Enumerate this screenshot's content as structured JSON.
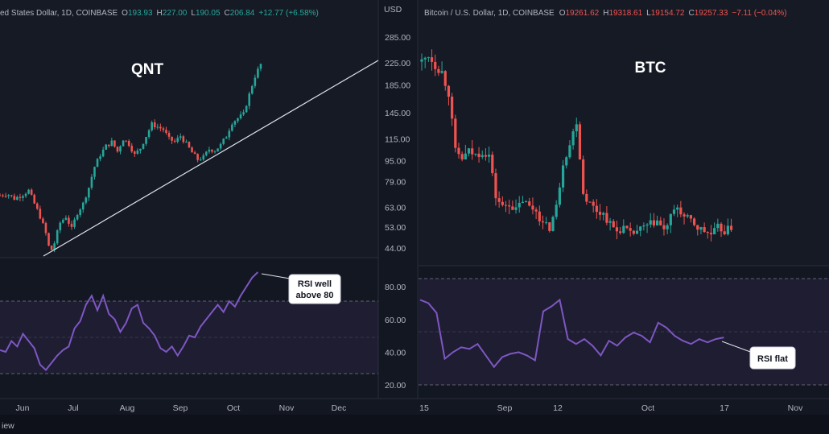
{
  "colors": {
    "up": "#26a69a",
    "down": "#ef5350",
    "rsi": "#7e57c2",
    "bg": "#131722",
    "panel": "#1e222d",
    "grid": "#2a2e39",
    "axis": "#b2b5be"
  },
  "bottom_label": "iew",
  "chart_data": [
    {
      "type": "candlestick",
      "panel": "left",
      "header": {
        "symbol": "ed States Dollar, 1D, COINBASE",
        "o_label": "O",
        "o": "193.93",
        "h_label": "H",
        "h": "227.00",
        "l_label": "L",
        "l": "190.05",
        "c_label": "C",
        "c": "206.84",
        "change": "+12.77 (+6.58%)"
      },
      "title": "QNT",
      "currency": "USD",
      "yscale": "log",
      "yticks": [
        "285.00",
        "225.00",
        "185.00",
        "145.00",
        "115.00",
        "95.00",
        "79.00",
        "63.00",
        "53.00",
        "44.00"
      ],
      "xticks": [
        "Jun",
        "Jul",
        "Aug",
        "Sep",
        "Oct",
        "Nov",
        "Dec"
      ],
      "trendline": {
        "from": {
          "date": "Jun 16",
          "price": 41
        },
        "to": {
          "date": "Nov 10",
          "price": 230
        }
      },
      "price_path": [
        [
          0,
          70
        ],
        [
          5,
          71
        ],
        [
          10,
          68
        ],
        [
          15,
          70
        ],
        [
          20,
          73
        ],
        [
          24,
          65
        ],
        [
          28,
          58
        ],
        [
          32,
          50
        ],
        [
          35,
          42
        ],
        [
          38,
          46
        ],
        [
          42,
          55
        ],
        [
          46,
          58
        ],
        [
          50,
          52
        ],
        [
          54,
          60
        ],
        [
          58,
          65
        ],
        [
          62,
          75
        ],
        [
          66,
          90
        ],
        [
          70,
          100
        ],
        [
          74,
          108
        ],
        [
          78,
          112
        ],
        [
          82,
          103
        ],
        [
          86,
          115
        ],
        [
          90,
          110
        ],
        [
          94,
          100
        ],
        [
          98,
          106
        ],
        [
          102,
          118
        ],
        [
          106,
          131
        ],
        [
          110,
          128
        ],
        [
          114,
          125
        ],
        [
          118,
          115
        ],
        [
          122,
          112
        ],
        [
          126,
          118
        ],
        [
          130,
          110
        ],
        [
          134,
          102
        ],
        [
          138,
          96
        ],
        [
          142,
          98
        ],
        [
          146,
          105
        ],
        [
          150,
          104
        ],
        [
          154,
          109
        ],
        [
          158,
          118
        ],
        [
          162,
          133
        ],
        [
          166,
          138
        ],
        [
          170,
          143
        ],
        [
          174,
          170
        ],
        [
          178,
          200
        ],
        [
          182,
          222
        ]
      ],
      "rsi": {
        "levels": [
          70,
          50,
          30
        ],
        "note": [
          "RSI well",
          "above 80"
        ],
        "values": [
          [
            0,
            43
          ],
          [
            4,
            42
          ],
          [
            8,
            48
          ],
          [
            12,
            45
          ],
          [
            16,
            52
          ],
          [
            20,
            48
          ],
          [
            24,
            44
          ],
          [
            28,
            35
          ],
          [
            32,
            32
          ],
          [
            36,
            36
          ],
          [
            40,
            40
          ],
          [
            44,
            43
          ],
          [
            48,
            45
          ],
          [
            52,
            55
          ],
          [
            56,
            59
          ],
          [
            60,
            68
          ],
          [
            64,
            73
          ],
          [
            68,
            65
          ],
          [
            72,
            73
          ],
          [
            76,
            63
          ],
          [
            80,
            60
          ],
          [
            84,
            53
          ],
          [
            88,
            58
          ],
          [
            92,
            66
          ],
          [
            96,
            68
          ],
          [
            100,
            58
          ],
          [
            104,
            55
          ],
          [
            108,
            51
          ],
          [
            112,
            44
          ],
          [
            116,
            42
          ],
          [
            120,
            45
          ],
          [
            124,
            40
          ],
          [
            128,
            45
          ],
          [
            132,
            51
          ],
          [
            136,
            50
          ],
          [
            140,
            56
          ],
          [
            144,
            60
          ],
          [
            148,
            64
          ],
          [
            152,
            68
          ],
          [
            156,
            64
          ],
          [
            160,
            70
          ],
          [
            164,
            67
          ],
          [
            168,
            73
          ],
          [
            172,
            78
          ],
          [
            176,
            83
          ],
          [
            180,
            86
          ]
        ]
      }
    },
    {
      "type": "candlestick",
      "panel": "right",
      "header": {
        "symbol": "Bitcoin / U.S. Dollar, 1D, COINBASE",
        "o_label": "O",
        "o": "19261.62",
        "h_label": "H",
        "h": "19318.61",
        "l_label": "L",
        "l": "19154.72",
        "c_label": "C",
        "c": "19257.33",
        "change": "−7.11 (−0.04%)"
      },
      "title": "BTC",
      "xticks": [
        "15",
        "Sep",
        "12",
        "Oct",
        "17",
        "Nov"
      ],
      "price_path": [
        [
          0,
          24100
        ],
        [
          2,
          24300
        ],
        [
          4,
          24000
        ],
        [
          6,
          23800
        ],
        [
          8,
          23200
        ],
        [
          10,
          21500
        ],
        [
          12,
          21300
        ],
        [
          14,
          21500
        ],
        [
          16,
          21400
        ],
        [
          18,
          21500
        ],
        [
          20,
          21400
        ],
        [
          22,
          20200
        ],
        [
          24,
          19900
        ],
        [
          26,
          20000
        ],
        [
          28,
          19800
        ],
        [
          30,
          20100
        ],
        [
          32,
          19900
        ],
        [
          34,
          19800
        ],
        [
          36,
          19400
        ],
        [
          38,
          19300
        ],
        [
          40,
          19900
        ],
        [
          42,
          21200
        ],
        [
          44,
          21700
        ],
        [
          46,
          22400
        ],
        [
          48,
          20300
        ],
        [
          50,
          20000
        ],
        [
          52,
          19800
        ],
        [
          54,
          19700
        ],
        [
          56,
          19400
        ],
        [
          58,
          19200
        ],
        [
          60,
          19300
        ],
        [
          62,
          19100
        ],
        [
          64,
          19200
        ],
        [
          66,
          19300
        ],
        [
          68,
          19400
        ],
        [
          70,
          19500
        ],
        [
          72,
          19200
        ],
        [
          74,
          19600
        ],
        [
          76,
          19900
        ],
        [
          78,
          19600
        ],
        [
          80,
          19500
        ],
        [
          82,
          19300
        ],
        [
          84,
          19200
        ],
        [
          86,
          19100
        ],
        [
          88,
          19300
        ],
        [
          90,
          19200
        ],
        [
          92,
          19300
        ]
      ],
      "rsi": {
        "levels": [
          70,
          50,
          30
        ],
        "yticks": [
          "80.00",
          "60.00",
          "40.00",
          "20.00"
        ],
        "note": [
          "RSI flat"
        ],
        "values": [
          [
            0,
            72
          ],
          [
            2,
            70
          ],
          [
            4,
            64
          ],
          [
            6,
            36
          ],
          [
            8,
            40
          ],
          [
            10,
            43
          ],
          [
            12,
            42
          ],
          [
            14,
            45
          ],
          [
            16,
            38
          ],
          [
            18,
            31
          ],
          [
            20,
            37
          ],
          [
            22,
            39
          ],
          [
            24,
            40
          ],
          [
            26,
            38
          ],
          [
            28,
            35
          ],
          [
            30,
            65
          ],
          [
            32,
            68
          ],
          [
            34,
            72
          ],
          [
            36,
            48
          ],
          [
            38,
            45
          ],
          [
            40,
            48
          ],
          [
            42,
            44
          ],
          [
            44,
            38
          ],
          [
            46,
            47
          ],
          [
            48,
            44
          ],
          [
            50,
            49
          ],
          [
            52,
            52
          ],
          [
            54,
            50
          ],
          [
            56,
            46
          ],
          [
            58,
            58
          ],
          [
            60,
            55
          ],
          [
            62,
            50
          ],
          [
            64,
            47
          ],
          [
            66,
            45
          ],
          [
            68,
            48
          ],
          [
            70,
            46
          ],
          [
            72,
            48
          ],
          [
            74,
            49
          ]
        ]
      }
    }
  ]
}
